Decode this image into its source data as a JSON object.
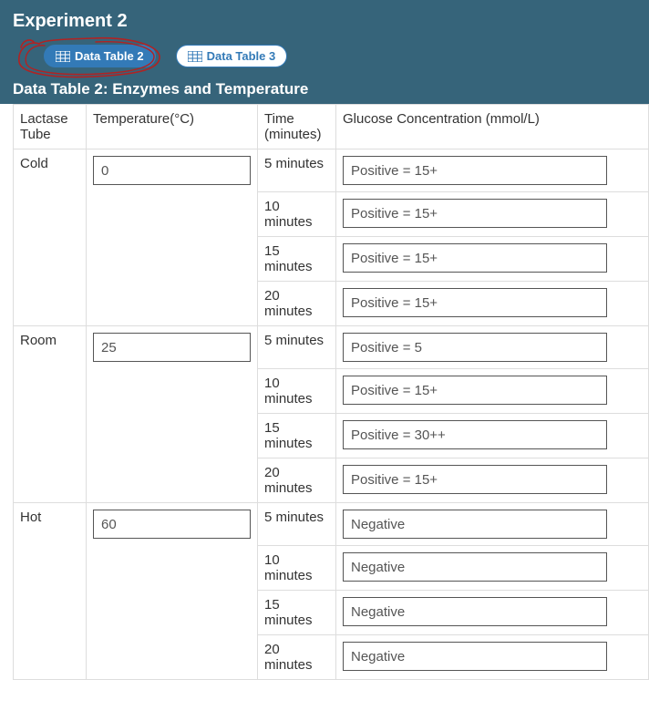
{
  "header": {
    "title": "Experiment 2",
    "subtitle": "Data Table 2: Enzymes and Temperature"
  },
  "tabs": [
    {
      "label": "Data Table 2",
      "active": true
    },
    {
      "label": "Data Table 3",
      "active": false
    }
  ],
  "columns": [
    "Lactase Tube",
    "Temperature(°C)",
    "Time (minutes)",
    "Glucose Concentration (mmol/L)"
  ],
  "groups": [
    {
      "tube": "Cold",
      "temperature": "0",
      "rows": [
        {
          "time": "5 minutes",
          "glucose": "Positive = 15+"
        },
        {
          "time": "10 minutes",
          "glucose": "Positive = 15+"
        },
        {
          "time": "15 minutes",
          "glucose": "Positive = 15+"
        },
        {
          "time": "20 minutes",
          "glucose": "Positive = 15+"
        }
      ]
    },
    {
      "tube": "Room",
      "temperature": "25",
      "rows": [
        {
          "time": "5 minutes",
          "glucose": "Positive = 5"
        },
        {
          "time": "10 minutes",
          "glucose": "Positive = 15+"
        },
        {
          "time": "15 minutes",
          "glucose": "Positive = 30++"
        },
        {
          "time": "20 minutes",
          "glucose": "Positive = 15+"
        }
      ]
    },
    {
      "tube": "Hot",
      "temperature": "60",
      "rows": [
        {
          "time": "5 minutes",
          "glucose": "Negative"
        },
        {
          "time": "10 minutes",
          "glucose": "Negative"
        },
        {
          "time": "15 minutes",
          "glucose": "Negative"
        },
        {
          "time": "20 minutes",
          "glucose": "Negative"
        }
      ]
    }
  ],
  "colors": {
    "header_bg": "#36647a",
    "primary": "#337ab7",
    "border": "#dddddd",
    "scribble": "#b22222"
  }
}
